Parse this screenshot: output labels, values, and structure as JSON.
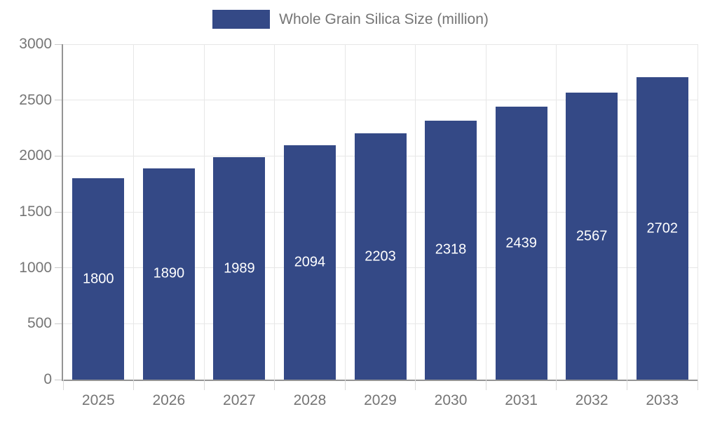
{
  "legend": {
    "label": "Whole Grain Silica Size (million)",
    "swatch_color": "#344986"
  },
  "chart_data": {
    "type": "bar",
    "title": "Whole Grain Silica Size (million)",
    "series_name": "Whole Grain Silica Size (million)",
    "categories": [
      "2025",
      "2026",
      "2027",
      "2028",
      "2029",
      "2030",
      "2031",
      "2032",
      "2033"
    ],
    "values": [
      1800,
      1890,
      1989,
      2094,
      2203,
      2318,
      2439,
      2567,
      2702
    ],
    "bar_labels": [
      "1800",
      "1890",
      "1989",
      "2094",
      "2203",
      "2318",
      "2439",
      "2567",
      "2702"
    ],
    "xlabel": "",
    "ylabel": "",
    "ylim": [
      0,
      3000
    ],
    "yticks": [
      0,
      500,
      1000,
      1500,
      2000,
      2500,
      3000
    ],
    "grid": true,
    "legend_position": "top-center",
    "bar_color": "#344986",
    "value_label_color": "#ffffff",
    "axis_text_color": "#757575"
  }
}
